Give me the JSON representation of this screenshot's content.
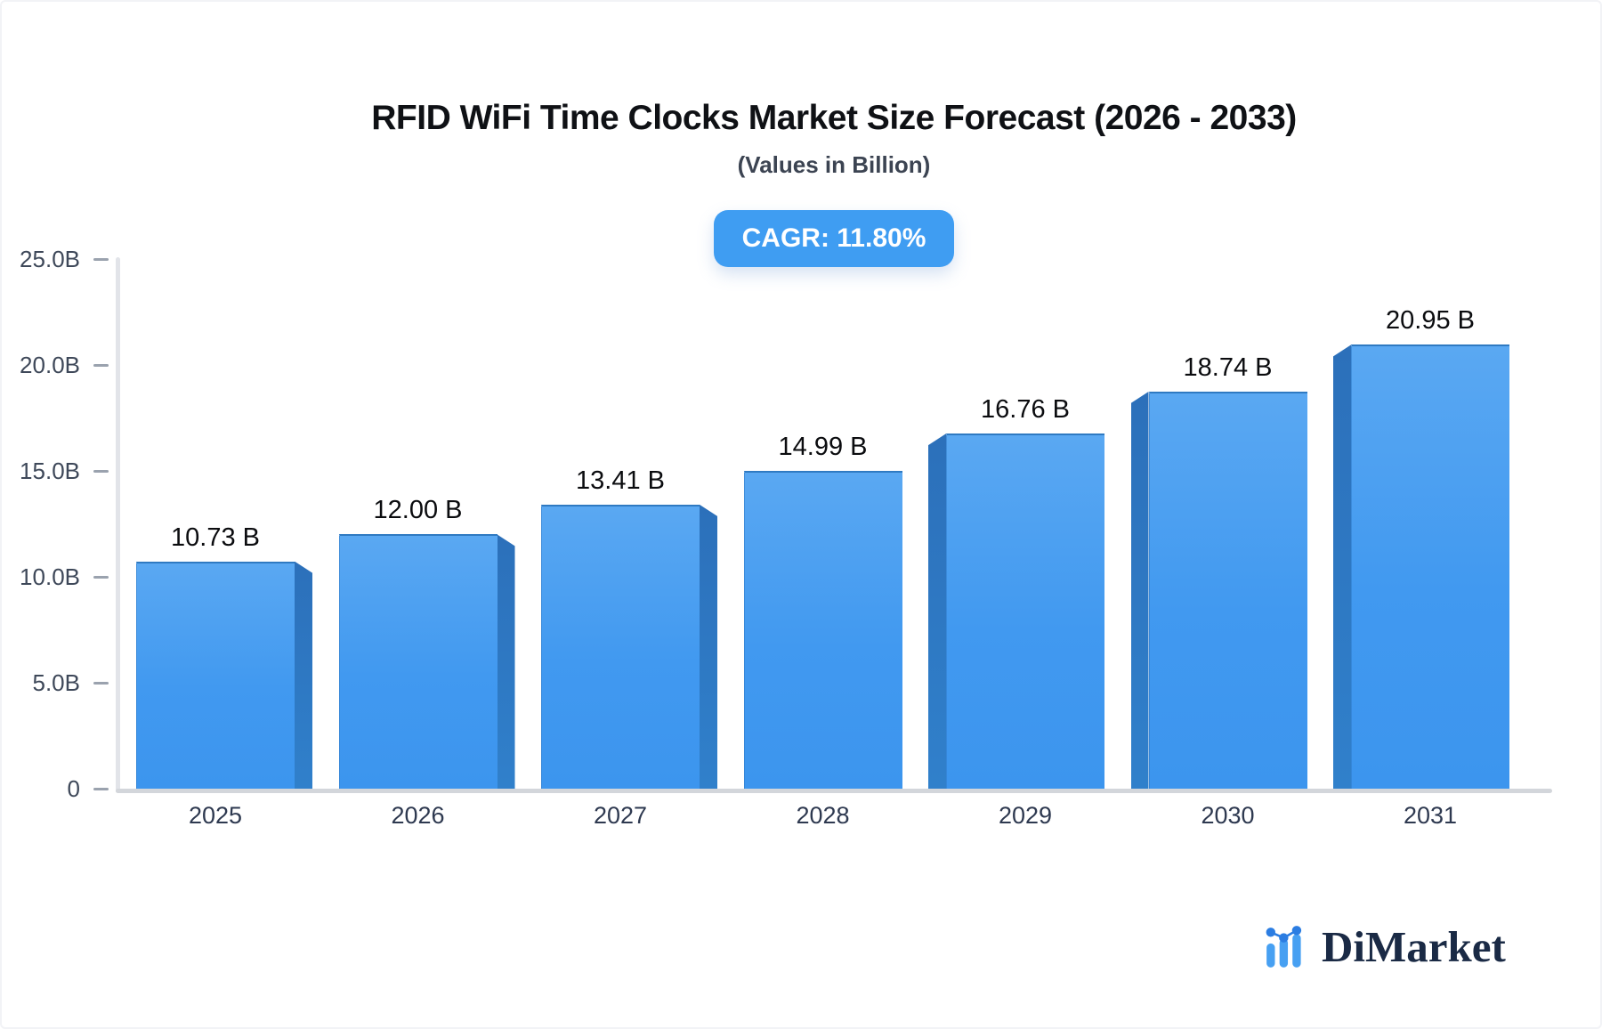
{
  "title": "RFID WiFi Time Clocks Market Size Forecast (2026 - 2033)",
  "subtitle": "(Values in Billion)",
  "badge": {
    "label": "CAGR: 11.80%"
  },
  "chart_data": {
    "type": "bar",
    "categories": [
      "2025",
      "2026",
      "2027",
      "2028",
      "2029",
      "2030",
      "2031"
    ],
    "values": [
      10.73,
      12.0,
      13.41,
      14.99,
      16.76,
      18.74,
      20.95
    ],
    "bar_labels": [
      "10.73 B",
      "12.00 B",
      "13.41 B",
      "14.99 B",
      "16.76 B",
      "18.74 B",
      "20.95 B"
    ],
    "y_tick_labels": [
      "25.0B",
      "20.0B",
      "15.0B",
      "10.0B",
      "5.0B",
      "0"
    ],
    "y_tick_values": [
      25,
      20,
      15,
      10,
      5,
      0
    ],
    "ylim": [
      0,
      25
    ],
    "title": "RFID WiFi Time Clocks Market Size Forecast (2026 - 2033)",
    "xlabel": "",
    "ylabel": "",
    "grid": false,
    "legend": "none",
    "style": "3d-extruded-bars, perspective toward center",
    "colors": {
      "bar_face_top": "#5aa8f2",
      "bar_face_bottom": "#3c95ee",
      "bar_side": "#2e77c1",
      "badge_background": "#3f9df2",
      "badge_text": "#ffffff",
      "axis_line": "#e2e4e9",
      "baseline": "#d3d6db",
      "tick": "#9aa2ae",
      "y_label_text": "#3e4859",
      "x_label_text": "#2e3950",
      "value_label_text": "#0b0c0f",
      "title_text": "#0f1115",
      "subtitle_text": "#3c4452"
    }
  },
  "logo": {
    "text": "DiMarket",
    "icon": "bar-chart-trend-icon"
  }
}
